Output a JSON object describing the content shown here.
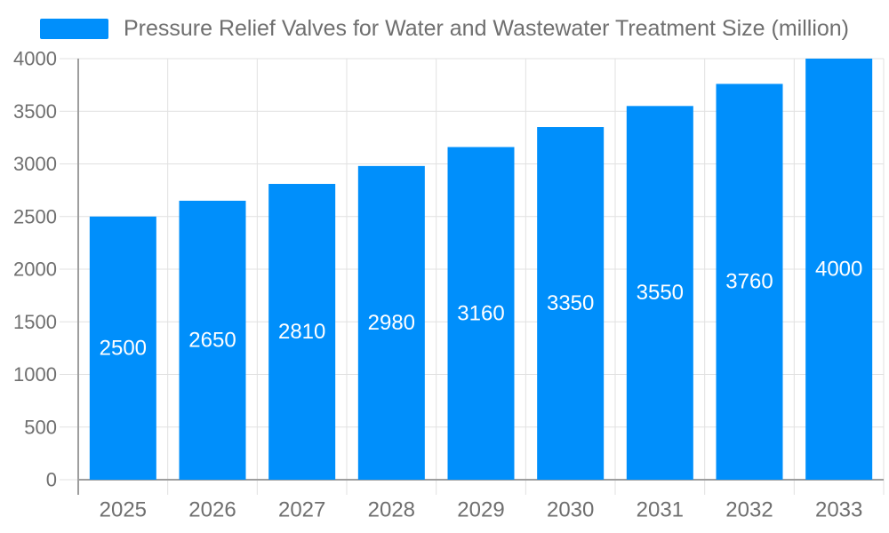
{
  "chart_data": {
    "type": "bar",
    "title": "Pressure Relief Valves for Water and Wastewater Treatment Size (million)",
    "categories": [
      "2025",
      "2026",
      "2027",
      "2028",
      "2029",
      "2030",
      "2031",
      "2032",
      "2033"
    ],
    "series": [
      {
        "name": "Pressure Relief Valves for Water and Wastewater Treatment Size (million)",
        "values": [
          2500,
          2650,
          2810,
          2980,
          3160,
          3350,
          3550,
          3760,
          4000
        ]
      }
    ],
    "xlabel": "",
    "ylabel": "",
    "ylim": [
      0,
      4000
    ],
    "ytick_step": 500,
    "ytick_labels": [
      "0",
      "500",
      "1000",
      "1500",
      "2000",
      "2500",
      "3000",
      "3500",
      "4000"
    ],
    "grid": true,
    "legend_position": "top-center",
    "value_labels": "inside-center",
    "colors": {
      "bar": "#008FFB",
      "bar_value_label": "#FFFFFF",
      "axis_label": "#6F6F6F",
      "legend_text": "#6F6F6F",
      "grid_line": "#E1E1E1",
      "axis_line": "#9E9E9E"
    }
  }
}
